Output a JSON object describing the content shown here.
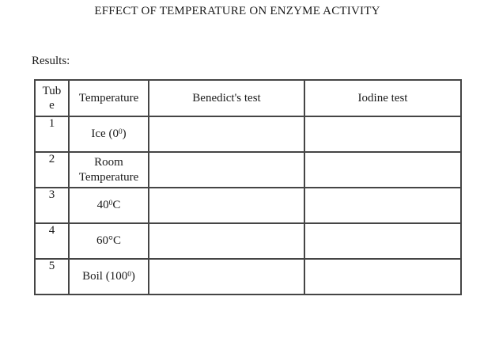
{
  "document": {
    "title": "EFFECT OF TEMPERATURE ON ENZYME ACTIVITY",
    "results_label": "Results:"
  },
  "table": {
    "columns": {
      "tube": "Tub\ne",
      "temperature": "Temperature",
      "benedict": "Benedict's test",
      "iodine": "Iodine test"
    },
    "rows": [
      {
        "tube": "1",
        "temperature": {
          "pre": "Ice (0",
          "sup": "0",
          "post": ")"
        },
        "benedict": "",
        "iodine": ""
      },
      {
        "tube": "2",
        "temperature": {
          "pre": "Room Temperature",
          "sup": "",
          "post": ""
        },
        "benedict": "",
        "iodine": ""
      },
      {
        "tube": "3",
        "temperature": {
          "pre": "40",
          "sup": "0",
          "post": "C"
        },
        "benedict": "",
        "iodine": ""
      },
      {
        "tube": "4",
        "temperature": {
          "pre": "60",
          "sup": "",
          "post": "°C"
        },
        "benedict": "",
        "iodine": ""
      },
      {
        "tube": "5",
        "temperature": {
          "pre": "Boil (100",
          "sup": "0",
          "post": ")"
        },
        "benedict": "",
        "iodine": ""
      }
    ]
  },
  "colors": {
    "text": "#1b1b1b",
    "table_border": "#454545",
    "background": "#ffffff"
  }
}
